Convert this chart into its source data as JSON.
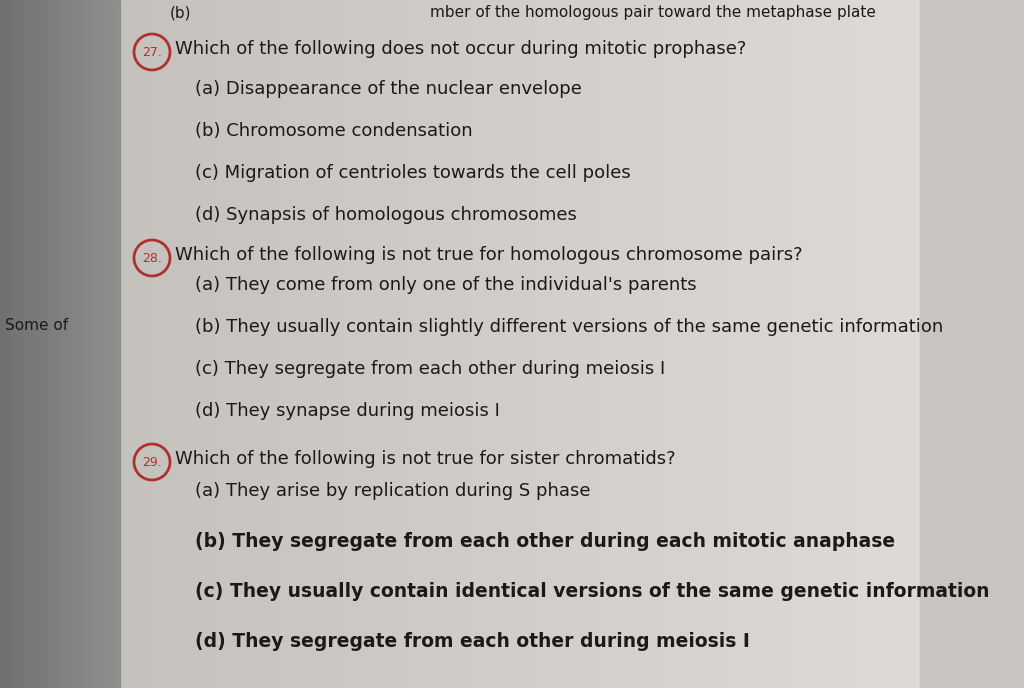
{
  "bg_left_color": "#a8a8a8",
  "bg_right_color": "#d8d5d0",
  "bg_mid_color": "#c5c2be",
  "page_color": "#d8d5d0",
  "left_bar_color": "#b0aeab",
  "top_text": "mber of the homologous pair toward the metaphase plate",
  "top_text2": "(b)",
  "left_side_text": "Some of",
  "circle_color": "#b03030",
  "text_color": "#1a1a1a",
  "questions": [
    {
      "number": "27.",
      "question": "Which of the following does not occur during mitotic prophase?",
      "options": [
        {
          "text": "(a) Disappearance of the nuclear envelope",
          "bold": false
        },
        {
          "text": "(b) Chromosome condensation",
          "bold": false
        },
        {
          "text": "(c) Migration of centrioles towards the cell poles",
          "bold": false
        },
        {
          "text": "(d) Synapsis of homologous chromosomes",
          "bold": false
        }
      ]
    },
    {
      "number": "28.",
      "question": "Which of the following is not true for homologous chromosome pairs?",
      "options": [
        {
          "text": "(a) They come from only one of the individual's parents",
          "bold": false
        },
        {
          "text": "(b) They usually contain slightly different versions of the same genetic information",
          "bold": false
        },
        {
          "text": "(c) They segregate from each other during meiosis I",
          "bold": false
        },
        {
          "text": "(d) They synapse during meiosis I",
          "bold": false
        }
      ]
    },
    {
      "number": "29.",
      "question": "Which of the following is not true for sister chromatids?",
      "options": [
        {
          "text": "(a) They arise by replication during S phase",
          "bold": false
        },
        {
          "text": "(b) They segregate from each other during each mitotic anaphase",
          "bold": true
        },
        {
          "text": "(c) They usually contain identical versions of the same genetic information",
          "bold": true
        },
        {
          "text": "(d) They segregate from each other during meiosis I",
          "bold": true
        }
      ]
    }
  ]
}
